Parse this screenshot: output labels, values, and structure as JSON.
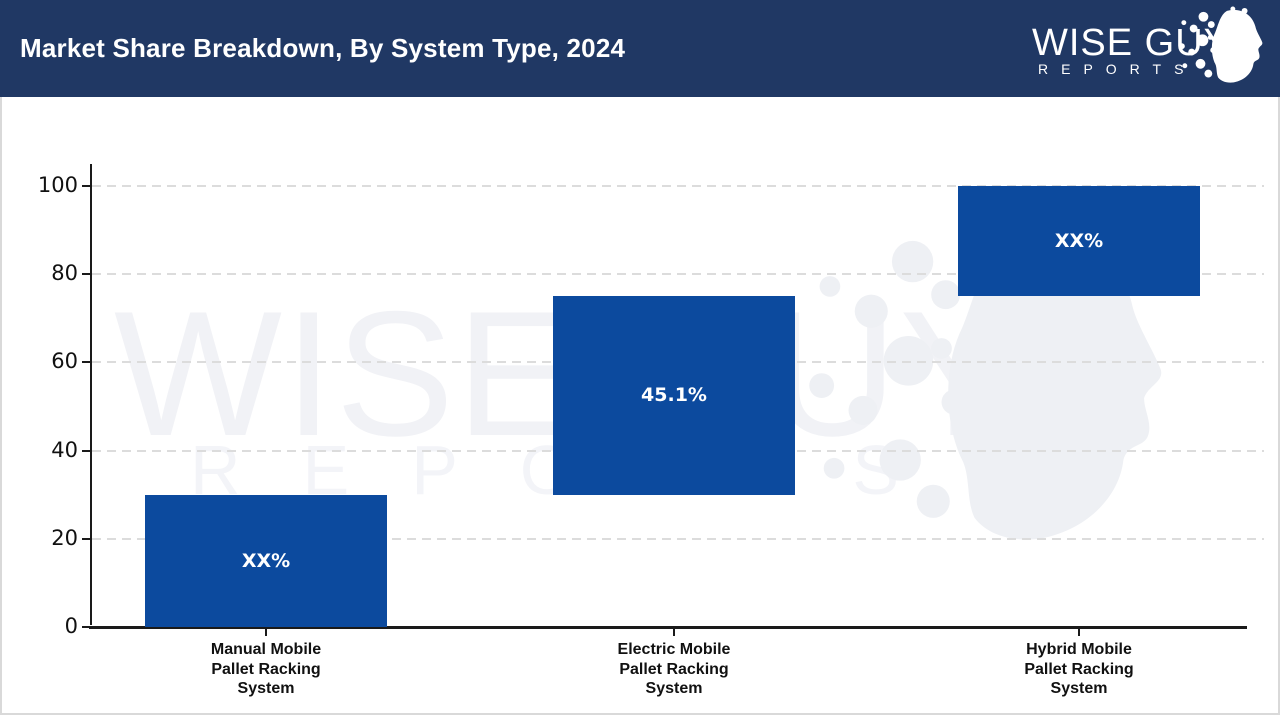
{
  "header": {
    "title": "Market Share Breakdown, By System Type, 2024",
    "background_color": "#203864",
    "logo": {
      "wordmark": "WISE GUY",
      "subtext": "REPORTS"
    }
  },
  "watermark": {
    "wordmark": "WISE GUY",
    "subtext": "REPORTS"
  },
  "chart_data": {
    "type": "bar",
    "variant": "floating segment bars; consecutive segments stack from 0 to 100%",
    "title": "Market Share Breakdown, By System Type, 2024",
    "categories": [
      [
        "Manual Mobile",
        "Pallet Racking",
        "System"
      ],
      [
        "Electric Mobile",
        "Pallet Racking",
        "System"
      ],
      [
        "Hybrid Mobile",
        "Pallet Racking",
        "System"
      ]
    ],
    "bars": [
      {
        "label": "XX%",
        "start": 0,
        "end": 30
      },
      {
        "label": "45.1%",
        "start": 30,
        "end": 75.1
      },
      {
        "label": "XX%",
        "start": 75.1,
        "end": 100
      }
    ],
    "yticks": [
      0,
      20,
      40,
      60,
      80,
      100
    ],
    "ylim": [
      0,
      105
    ],
    "xlabel": "",
    "ylabel": "",
    "grid": "horizontal dashed",
    "legend": "none",
    "bar_color": "#0c4a9e",
    "bar_label_color": "#ffffff",
    "axis_color": "#1a1a1a",
    "gridline_color": "#dcdcdc"
  }
}
